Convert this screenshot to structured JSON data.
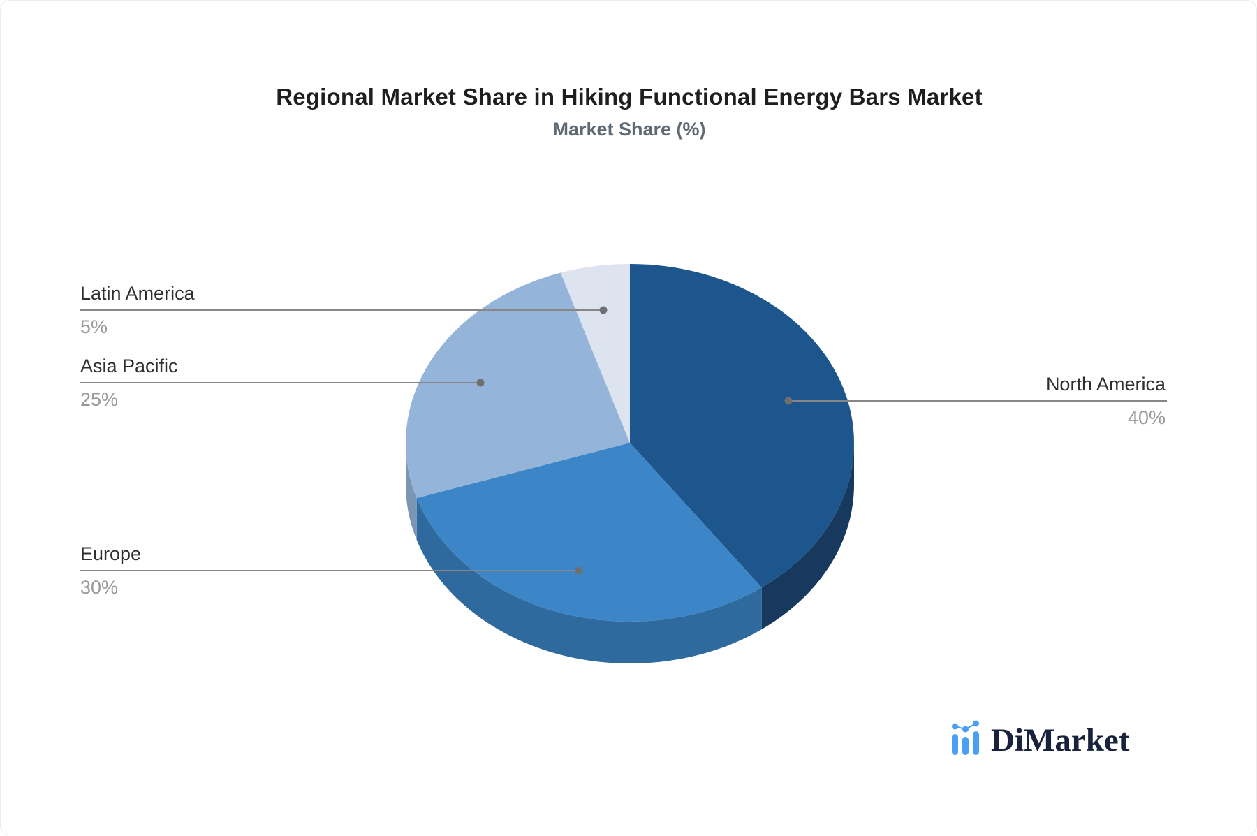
{
  "chart_data": {
    "type": "pie",
    "title": "Regional Market Share in Hiking Functional Energy Bars Market",
    "subtitle": "Market Share (%)",
    "unit": "%",
    "pie_3d": true,
    "start_angle_deg": 0,
    "direction": "clockwise",
    "legend_position": "callout-labels",
    "slices": [
      {
        "label": "North America",
        "value": 40,
        "display": "40%",
        "color": "#1d568c",
        "depth_color": "#17395e",
        "label_side": "right"
      },
      {
        "label": "Europe",
        "value": 30,
        "display": "30%",
        "color": "#3c86c8",
        "depth_color": "#2e6a9e",
        "label_side": "left"
      },
      {
        "label": "Asia Pacific",
        "value": 25,
        "display": "25%",
        "color": "#94b5d9",
        "depth_color": "#7c95b4",
        "label_side": "left"
      },
      {
        "label": "Latin America",
        "value": 5,
        "display": "5%",
        "color": "#dde4ef",
        "depth_color": "#b9c3d4",
        "label_side": "left"
      }
    ],
    "leader_line_color": "#878787",
    "leader_dot_color": "#6f6f6f"
  },
  "branding": {
    "logo_text": "DiMarket",
    "logo_icon": "bar-chart-icon",
    "logo_text_color": "#18223c",
    "logo_accent_color": "#4a9ff5"
  }
}
